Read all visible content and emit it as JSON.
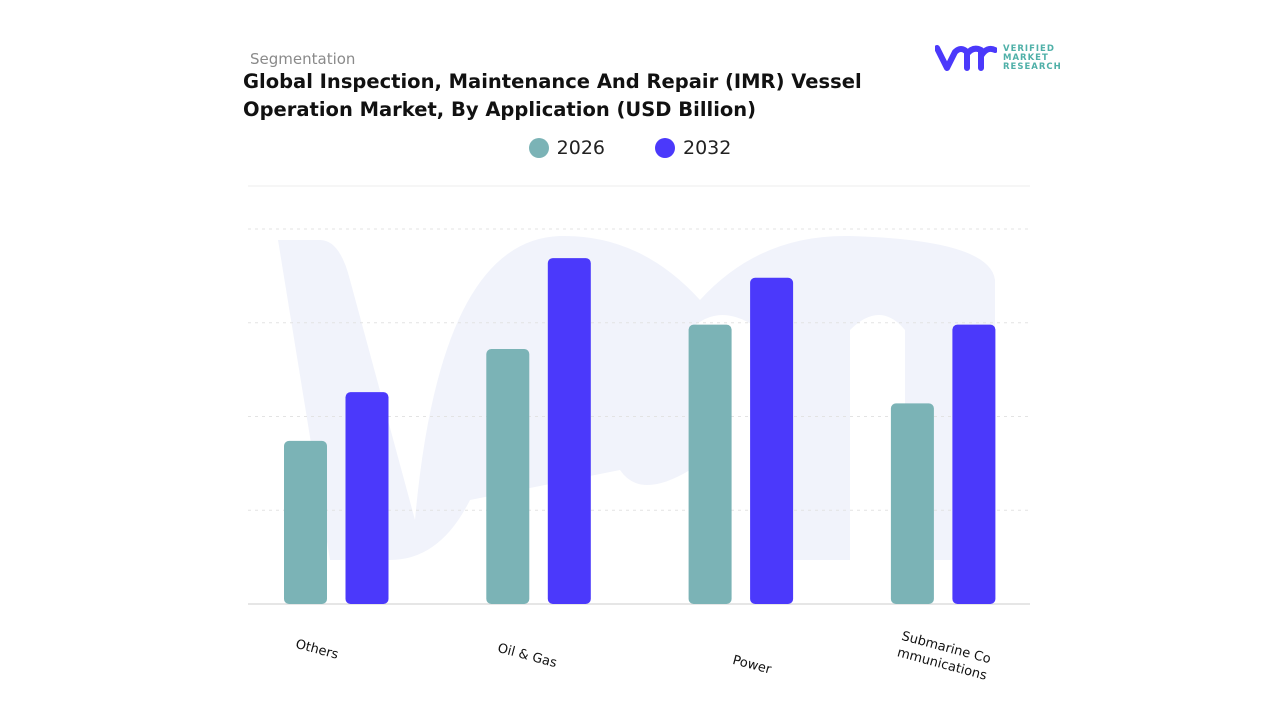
{
  "header": {
    "segment_label": "Segmentation",
    "title": "Global Inspection, Maintenance And Repair (IMR) Vessel Operation Market, By Application (USD Billion)"
  },
  "logo": {
    "line1": "VERIFIED",
    "line2": "MARKET",
    "line3": "RESEARCH"
  },
  "chart_data": {
    "type": "bar",
    "title": "Global Inspection, Maintenance And Repair (IMR) Vessel Operation Market, By Application (USD Billion)",
    "categories": [
      "Others",
      "Oil & Gas",
      "Power",
      "Submarine Communications"
    ],
    "series": [
      {
        "name": "2026",
        "color": "#7bb3b6",
        "values": [
          1.74,
          2.72,
          2.98,
          2.14
        ]
      },
      {
        "name": "2032",
        "color": "#4b39fb",
        "values": [
          2.26,
          3.69,
          3.48,
          2.98
        ]
      }
    ],
    "ylim": [
      0,
      4.5
    ],
    "grid": true,
    "legend": "top-center",
    "xlabel": "",
    "ylabel": ""
  }
}
